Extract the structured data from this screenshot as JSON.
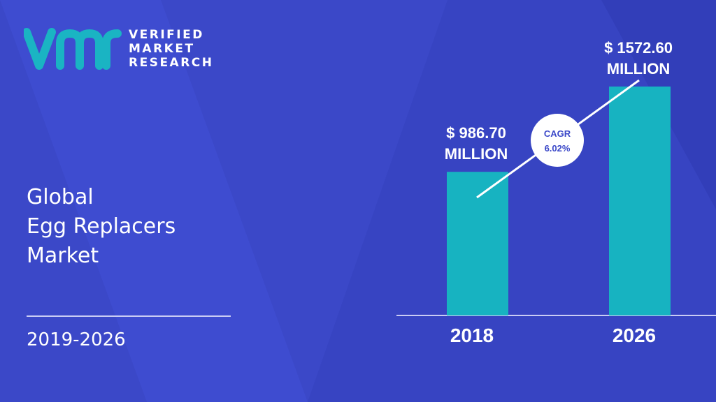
{
  "brand": {
    "line1": "VERIFIED",
    "line2": "MARKET",
    "line3": "RESEARCH",
    "logo_icon": "vmr-logo-icon"
  },
  "title": {
    "line1": "Global",
    "line2": "Egg Replacers",
    "line3": "Market"
  },
  "forecast_period": "2019-2026",
  "colors": {
    "background": "#3b48c8",
    "bar": "#17b3c1",
    "logo": "#1ab4c3"
  },
  "chart_data": {
    "type": "bar",
    "categories": [
      "2018",
      "2026"
    ],
    "values": [
      986.7,
      1572.6
    ],
    "value_labels": [
      [
        "$ 986.70",
        "MILLION"
      ],
      [
        "$ 1572.60",
        "MILLION"
      ]
    ],
    "unit": "USD Million",
    "cagr": {
      "label": "CAGR",
      "value": "6.02%"
    },
    "ylim": [
      0,
      1750
    ],
    "grid": false
  }
}
